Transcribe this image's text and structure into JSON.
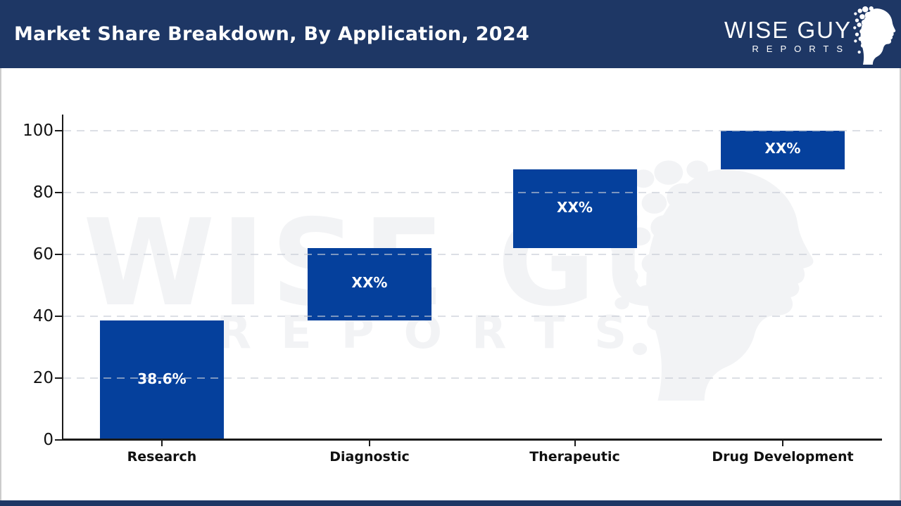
{
  "header": {
    "title": "Market Share Breakdown, By Application, 2024",
    "logo": {
      "wordmark": "WISE GUY",
      "subtext": "REPORTS"
    }
  },
  "watermark": {
    "line1": "WISE GUY",
    "line2": "REPORTS"
  },
  "chart_data": {
    "type": "bar",
    "subtype": "waterfall",
    "title": "Market Share Breakdown, By Application, 2024",
    "categories": [
      "Research",
      "Diagnostic",
      "Therapeutic",
      "Drug Development"
    ],
    "segments": [
      {
        "category": "Research",
        "start": 0,
        "end": 38.6,
        "label": "38.6%"
      },
      {
        "category": "Diagnostic",
        "start": 38.6,
        "end": 62,
        "label": "XX%"
      },
      {
        "category": "Therapeutic",
        "start": 62,
        "end": 87.5,
        "label": "XX%"
      },
      {
        "category": "Drug Development",
        "start": 87.5,
        "end": 100,
        "label": "XX%"
      }
    ],
    "ylim": [
      0,
      105
    ],
    "yticks": [
      0,
      20,
      40,
      60,
      80,
      100
    ],
    "xlabel": "",
    "ylabel": "",
    "legend": "none",
    "grid": "horizontal-dashed",
    "bar_color": "#05409c",
    "colors": {
      "header_bg": "#1e3765",
      "footer_bg": "#1e3765",
      "axis": "#1a1a1a",
      "grid_line": "#dfe2e7",
      "watermark": "#f2f3f5",
      "bar_value_text": "#ffffff"
    }
  }
}
